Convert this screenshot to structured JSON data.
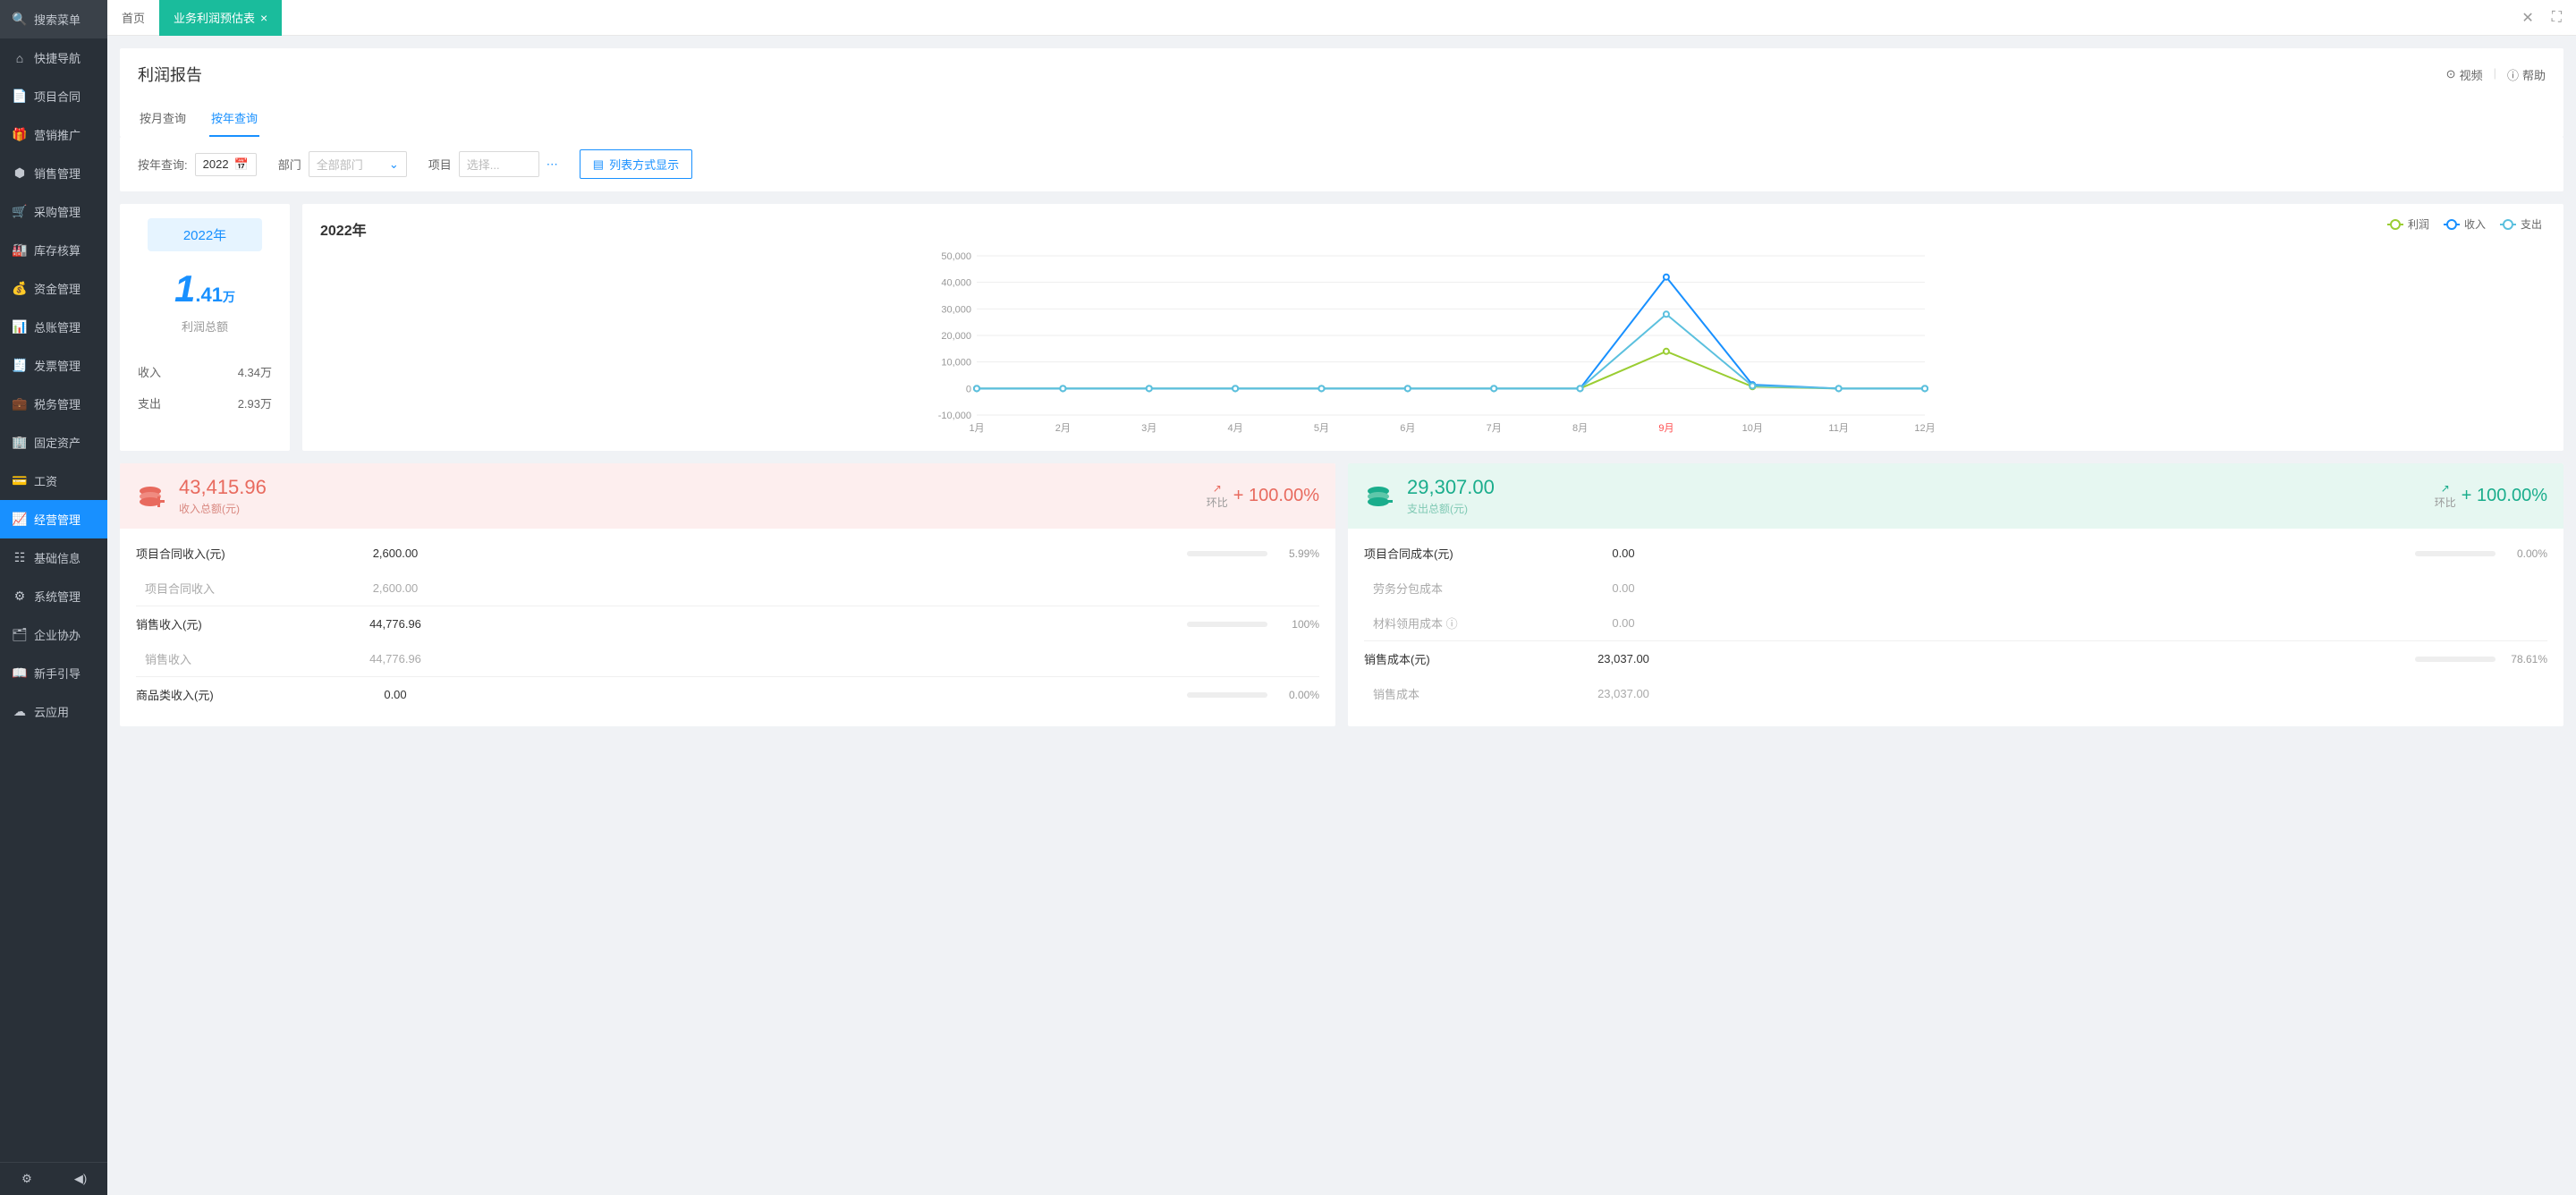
{
  "colors": {
    "sidebar_bg": "#293038",
    "primary": "#1890ff",
    "teal": "#1abc9c",
    "red": "#e86a5e",
    "green": "#1aad8c",
    "income_bg": "#fdeeee",
    "expense_bg": "#e6f7f1"
  },
  "sidebar": {
    "items": [
      {
        "icon": "🔍",
        "label": "搜索菜单"
      },
      {
        "icon": "⌂",
        "label": "快捷导航"
      },
      {
        "icon": "📄",
        "label": "项目合同"
      },
      {
        "icon": "🎁",
        "label": "营销推广"
      },
      {
        "icon": "⬢",
        "label": "销售管理"
      },
      {
        "icon": "🛒",
        "label": "采购管理"
      },
      {
        "icon": "🏭",
        "label": "库存核算"
      },
      {
        "icon": "💰",
        "label": "资金管理"
      },
      {
        "icon": "📊",
        "label": "总账管理"
      },
      {
        "icon": "🧾",
        "label": "发票管理"
      },
      {
        "icon": "💼",
        "label": "税务管理"
      },
      {
        "icon": "🏢",
        "label": "固定资产"
      },
      {
        "icon": "💳",
        "label": "工资"
      },
      {
        "icon": "📈",
        "label": "经营管理"
      },
      {
        "icon": "☷",
        "label": "基础信息"
      },
      {
        "icon": "⚙",
        "label": "系统管理"
      },
      {
        "icon": "🗂",
        "label": "企业协办"
      },
      {
        "icon": "📖",
        "label": "新手引导"
      },
      {
        "icon": "☁",
        "label": "云应用"
      }
    ],
    "active_index": 13
  },
  "tabs": {
    "items": [
      {
        "label": "首页",
        "closable": false
      },
      {
        "label": "业务利润预估表",
        "closable": true
      }
    ],
    "active_index": 1
  },
  "page": {
    "title": "利润报告",
    "actions": {
      "video": "视频",
      "help": "帮助"
    },
    "sub_tabs": [
      "按月查询",
      "按年查询"
    ],
    "sub_tab_active": 1
  },
  "filters": {
    "year_label": "按年查询:",
    "year_value": "2022",
    "dept_label": "部门",
    "dept_placeholder": "全部部门",
    "project_label": "项目",
    "project_placeholder": "选择...",
    "list_button": "列表方式显示"
  },
  "summary": {
    "year_badge": "2022年",
    "big_int": "1",
    "big_dec": ".41",
    "big_unit": "万",
    "big_label": "利润总额",
    "rows": [
      {
        "label": "收入",
        "value": "4.34万"
      },
      {
        "label": "支出",
        "value": "2.93万"
      }
    ]
  },
  "chart": {
    "type": "line",
    "title": "2022年",
    "x_labels": [
      "1月",
      "2月",
      "3月",
      "4月",
      "5月",
      "6月",
      "7月",
      "8月",
      "9月",
      "10月",
      "11月",
      "12月"
    ],
    "highlight_x_index": 8,
    "y_ticks": [
      -10000,
      0,
      10000,
      20000,
      30000,
      40000,
      50000
    ],
    "y_tick_labels": [
      "-10,000",
      "0",
      "10,000",
      "20,000",
      "30,000",
      "40,000",
      "50,000"
    ],
    "ylim": [
      -10000,
      50000
    ],
    "series": [
      {
        "name": "利润",
        "color": "#9acd32",
        "values": [
          0,
          0,
          0,
          0,
          0,
          0,
          0,
          0,
          14000,
          700,
          0,
          0
        ]
      },
      {
        "name": "收入",
        "color": "#1890ff",
        "values": [
          0,
          0,
          0,
          0,
          0,
          0,
          0,
          0,
          42000,
          1400,
          0,
          0
        ]
      },
      {
        "name": "支出",
        "color": "#5bc0de",
        "values": [
          0,
          0,
          0,
          0,
          0,
          0,
          0,
          0,
          28000,
          1000,
          0,
          0
        ]
      }
    ],
    "grid_color": "#eeeeee",
    "background_color": "#ffffff",
    "font_size": 11
  },
  "income_panel": {
    "amount": "43,415.96",
    "sublabel": "收入总额(元)",
    "ratio_label": "环比",
    "trend": "+ 100.00%",
    "lines": [
      {
        "type": "main",
        "label": "项目合同收入(元)",
        "value": "2,600.00",
        "pct": "5.99%",
        "fill": 5.99
      },
      {
        "type": "sub",
        "label": "项目合同收入",
        "value": "2,600.00"
      },
      {
        "type": "main",
        "label": "销售收入(元)",
        "value": "44,776.96",
        "pct": "100%",
        "fill": 100
      },
      {
        "type": "sub",
        "label": "销售收入",
        "value": "44,776.96"
      },
      {
        "type": "main",
        "label": "商品类收入(元)",
        "value": "0.00",
        "pct": "0.00%",
        "fill": 0
      }
    ]
  },
  "expense_panel": {
    "amount": "29,307.00",
    "sublabel": "支出总额(元)",
    "ratio_label": "环比",
    "trend": "+ 100.00%",
    "lines": [
      {
        "type": "main",
        "label": "项目合同成本(元)",
        "value": "0.00",
        "pct": "0.00%",
        "fill": 0
      },
      {
        "type": "sub",
        "label": "劳务分包成本",
        "value": "0.00"
      },
      {
        "type": "sub",
        "label": "材料领用成本 ⓘ",
        "value": "0.00"
      },
      {
        "type": "main",
        "label": "销售成本(元)",
        "value": "23,037.00",
        "pct": "78.61%",
        "fill": 78.61
      },
      {
        "type": "sub",
        "label": "销售成本",
        "value": "23,037.00"
      }
    ]
  }
}
